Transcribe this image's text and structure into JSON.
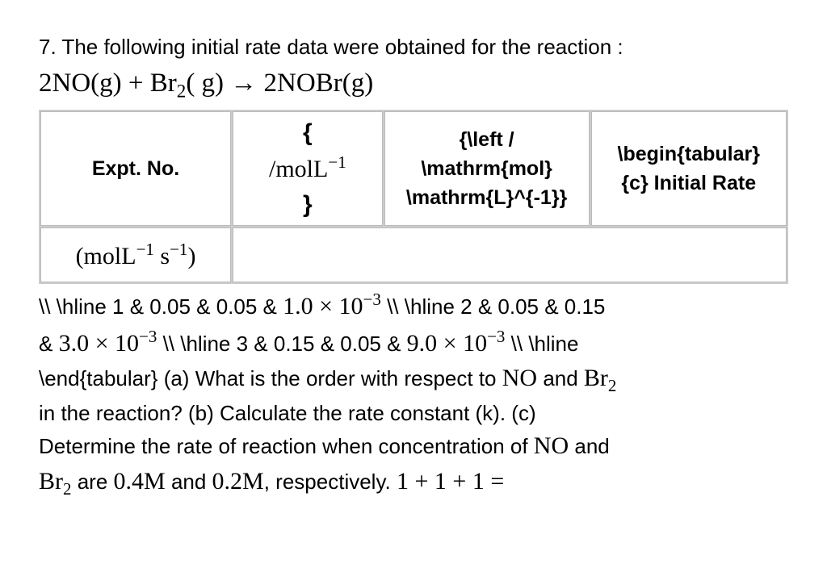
{
  "question": {
    "number_prefix": "7. ",
    "intro": "The following initial rate data were obtained for the reaction :",
    "equation_html": "2NO(g) + Br<sub>2</sub>( g) &rarr; 2NOBr(g)"
  },
  "table": {
    "row1": {
      "c1": "Expt. No.",
      "c2_brace_open": "{",
      "c2_math_html": "/molL<sup>&minus;1</sup>",
      "c2_brace_close": "}",
      "c3_line1": "{\\left /",
      "c3_line2": "\\mathrm{mol}",
      "c3_line3": "\\mathrm{L}^{-1}}",
      "c4_line1": "\\begin{tabular}",
      "c4_line2": "{c} Initial Rate"
    },
    "row2": {
      "c1_html": "(molL<sup>&minus;1</sup>&nbsp;s<sup>&minus;1</sup>)"
    }
  },
  "body": {
    "seg1": "\\\\ \\hline 1 & 0.05 & 0.05 & ",
    "sci1_html": "1.0 &times; 10<sup>&minus;3</sup>",
    "seg2": " \\\\ \\hline 2 & 0.05 & 0.15",
    "seg3_pre": "& ",
    "sci2_html": "3.0 &times; 10<sup>&minus;3</sup>",
    "seg4": " \\\\ \\hline 3 & 0.15 & 0.05 & ",
    "sci3_html": "9.0 &times; 10<sup>&minus;3</sup>",
    "seg5": " \\\\ \\hline",
    "seg6a": "\\end{tabular} (a) What is the order with respect to ",
    "no_html": "NO",
    "seg6b": " and ",
    "br2_html": "Br<sub>2</sub>",
    "seg7": "in the reaction? (b) Calculate the rate constant (k). (c)",
    "seg8a": "Determine the rate of reaction when concentration of ",
    "seg8b": " and",
    "seg9a_html": "Br<sub>2</sub>",
    "seg9b": " are ",
    "m1_html": "0.4M",
    "seg9c": " and ",
    "m2_html": "0.2M",
    "seg9d": ", respectively. ",
    "tail_html": "1 + 1 + 1 ="
  }
}
